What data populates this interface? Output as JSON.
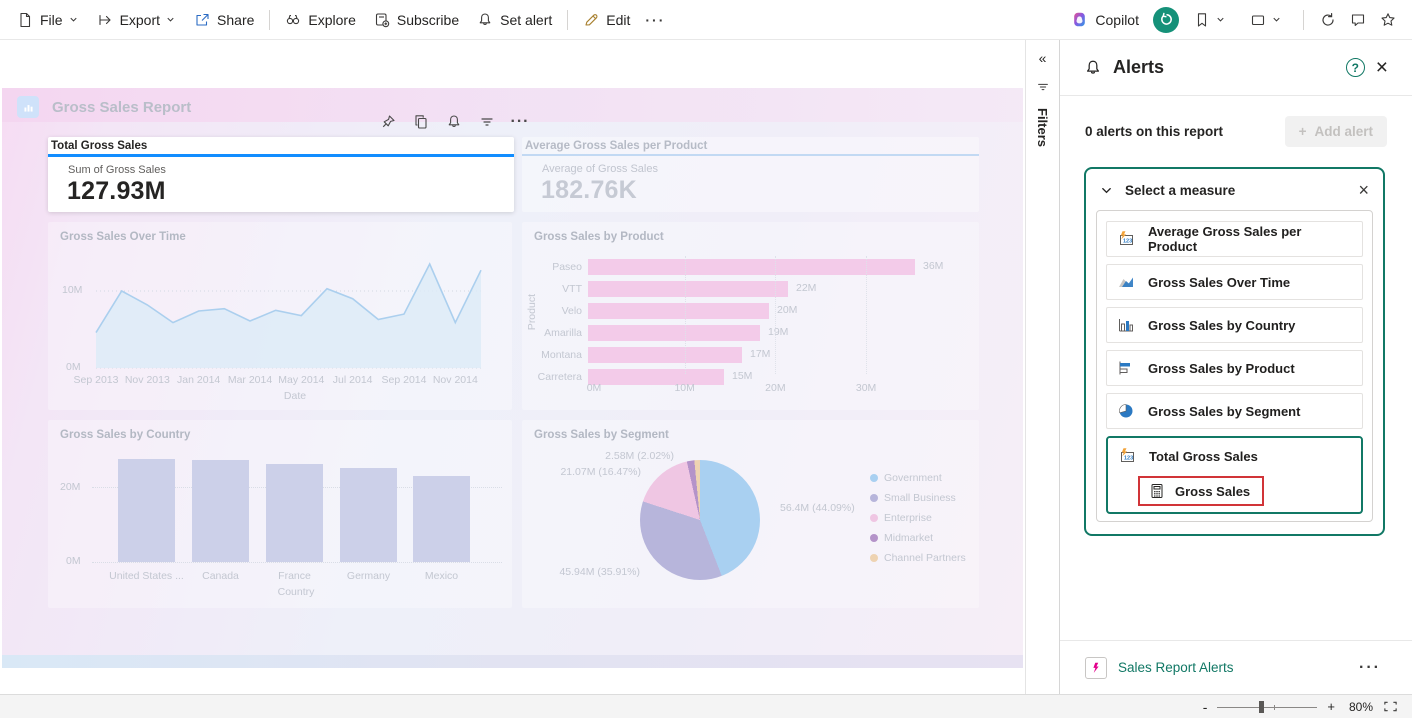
{
  "colors": {
    "accent_teal": "#117865",
    "selection_blue": "#118dff",
    "highlight_red": "#d13438"
  },
  "toolbar": {
    "file": "File",
    "export": "Export",
    "share": "Share",
    "explore": "Explore",
    "subscribe": "Subscribe",
    "set_alert": "Set alert",
    "edit": "Edit",
    "more": "···",
    "copilot": "Copilot"
  },
  "filters_pane": {
    "label": "Filters",
    "collapse_glyph": "«"
  },
  "report": {
    "title": "Gross Sales Report",
    "cards": {
      "total": {
        "title": "Total Gross Sales",
        "subtitle": "Sum of Gross Sales",
        "value": "127.93M"
      },
      "average": {
        "title": "Average Gross Sales per Product",
        "subtitle": "Average of Gross Sales",
        "value": "182.76K"
      }
    },
    "charts": {
      "over_time": {
        "type": "area",
        "title": "Gross Sales Over Time",
        "xlabel": "Date",
        "y_ticks": [
          "0M",
          "10M"
        ],
        "x_ticks": [
          "Sep 2013",
          "Nov 2013",
          "Jan 2014",
          "Mar 2014",
          "May 2014",
          "Jul 2014",
          "Sep 2014",
          "Nov 2014"
        ],
        "x": [
          "Sep 2013",
          "Oct 2013",
          "Nov 2013",
          "Dec 2013",
          "Jan 2014",
          "Feb 2014",
          "Mar 2014",
          "Apr 2014",
          "May 2014",
          "Jun 2014",
          "Jul 2014",
          "Aug 2014",
          "Sep 2014",
          "Oct 2014",
          "Nov 2014",
          "Dec 2014"
        ],
        "values_millions": [
          4.6,
          10,
          8.2,
          5.9,
          7.4,
          7.7,
          6.1,
          7.5,
          6.8,
          10.3,
          9,
          6.3,
          7,
          13.5,
          5.9,
          12.7
        ]
      },
      "by_product": {
        "type": "bar",
        "title": "Gross Sales by Product",
        "ylabel": "Product",
        "categories": [
          "Paseo",
          "VTT",
          "Velo",
          "Amarilla",
          "Montana",
          "Carretera"
        ],
        "values_millions": [
          36,
          22,
          20,
          19,
          17,
          15
        ],
        "data_labels": [
          "36M",
          "22M",
          "20M",
          "19M",
          "17M",
          "15M"
        ],
        "x_ticks": [
          "0M",
          "10M",
          "20M",
          "30M"
        ]
      },
      "by_country": {
        "type": "column",
        "title": "Gross Sales by Country",
        "xlabel": "Country",
        "categories": [
          "United States ...",
          "Canada",
          "France",
          "Germany",
          "Mexico"
        ],
        "values_millions": [
          27.4,
          27.1,
          26,
          25.1,
          22.8
        ],
        "y_ticks": [
          "0M",
          "20M"
        ]
      },
      "by_segment": {
        "type": "pie",
        "title": "Gross Sales by Segment",
        "slices": [
          {
            "label": "Government",
            "value_label": "56.4M (44.09%)",
            "pct": 44.09,
            "color": "#a9d0f1"
          },
          {
            "label": "Small Business",
            "value_label": "45.94M (35.91%)",
            "pct": 35.91,
            "color": "#b7b5db"
          },
          {
            "label": "Enterprise",
            "value_label": "21.07M (16.47%)",
            "pct": 16.47,
            "color": "#efc6e3"
          },
          {
            "label": "Midmarket",
            "value_label": "2.58M (2.02%)",
            "pct": 2.02,
            "color": "#b493c9"
          },
          {
            "label": "Channel Partners",
            "value_label": "",
            "pct": 1.51,
            "color": "#eed3b2"
          }
        ]
      }
    }
  },
  "alerts_panel": {
    "title": "Alerts",
    "summary": "0 alerts on this report",
    "add_alert": "Add alert",
    "measure_picker": {
      "title": "Select a measure",
      "items": [
        {
          "label": "Average Gross Sales per Product",
          "icon": "kpi-card"
        },
        {
          "label": "Gross Sales Over Time",
          "icon": "area-chart"
        },
        {
          "label": "Gross Sales by Country",
          "icon": "column-chart"
        },
        {
          "label": "Gross Sales by Product",
          "icon": "bar-chart"
        },
        {
          "label": "Gross Sales by Segment",
          "icon": "pie-chart"
        }
      ],
      "selected_group": {
        "primary": {
          "label": "Total Gross Sales",
          "icon": "kpi-card"
        },
        "measure": {
          "label": "Gross Sales",
          "icon": "calculator"
        }
      }
    },
    "footer": {
      "name": "Sales Report Alerts",
      "more": "···"
    }
  },
  "status_bar": {
    "minus": "-",
    "plus": "+",
    "zoom": "80%"
  }
}
